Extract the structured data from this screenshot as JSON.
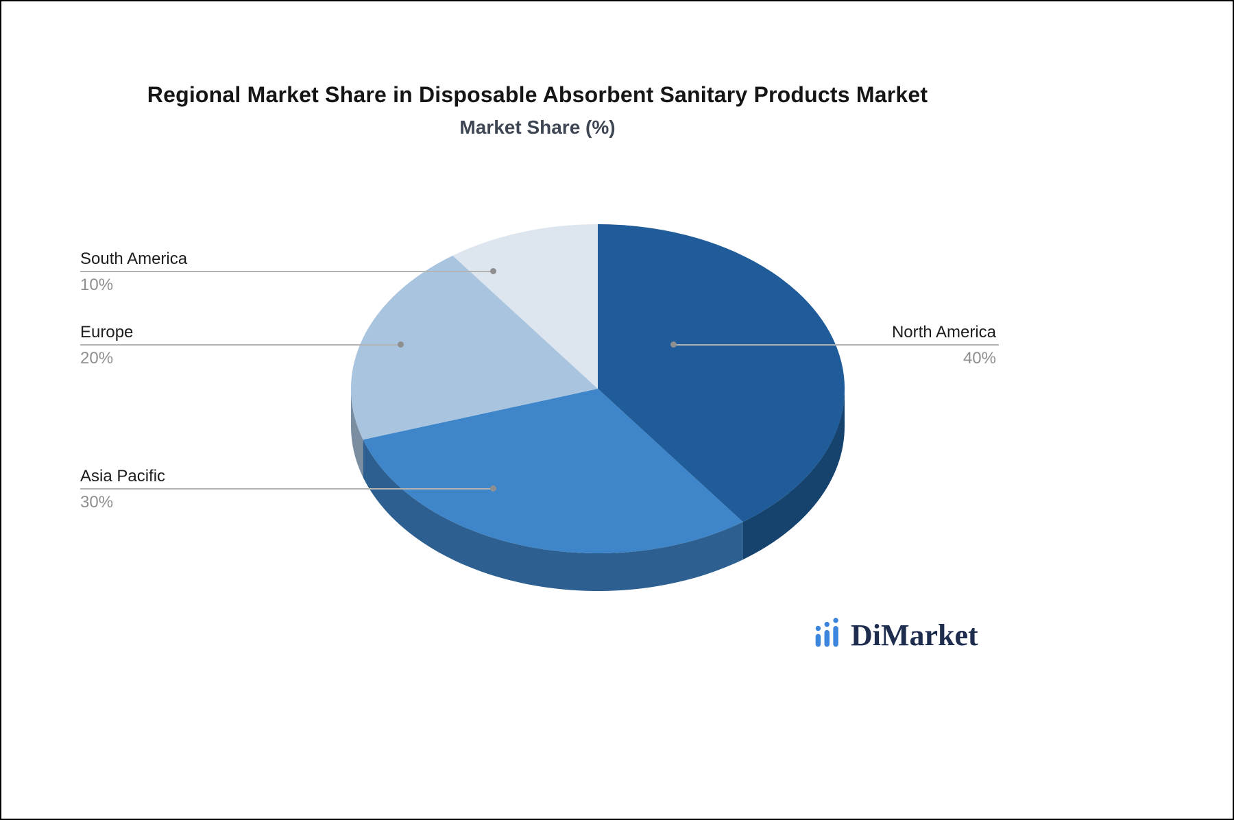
{
  "title": "Regional Market Share in Disposable Absorbent Sanitary Products Market",
  "subtitle": "Market Share (%)",
  "logo": {
    "text": "DiMarket",
    "icon": "bar-chart-logo-icon"
  },
  "chart_data": {
    "type": "pie",
    "title": "Regional Market Share in Disposable Absorbent Sanitary Products Market",
    "subtitle": "Market Share (%)",
    "unit": "%",
    "direction": "clockwise",
    "start_angle_deg": 0,
    "legend_position": "callout-labels",
    "style": "3d-pie",
    "slices": [
      {
        "label": "North America",
        "value": 40,
        "pct_text": "40%",
        "color": "#1f5c99"
      },
      {
        "label": "Asia Pacific",
        "value": 30,
        "pct_text": "30%",
        "color": "#3e86c9"
      },
      {
        "label": "Europe",
        "value": 20,
        "pct_text": "20%",
        "color": "#a9c4df"
      },
      {
        "label": "South America",
        "value": 10,
        "pct_text": "10%",
        "color": "#dde5ee"
      }
    ]
  }
}
